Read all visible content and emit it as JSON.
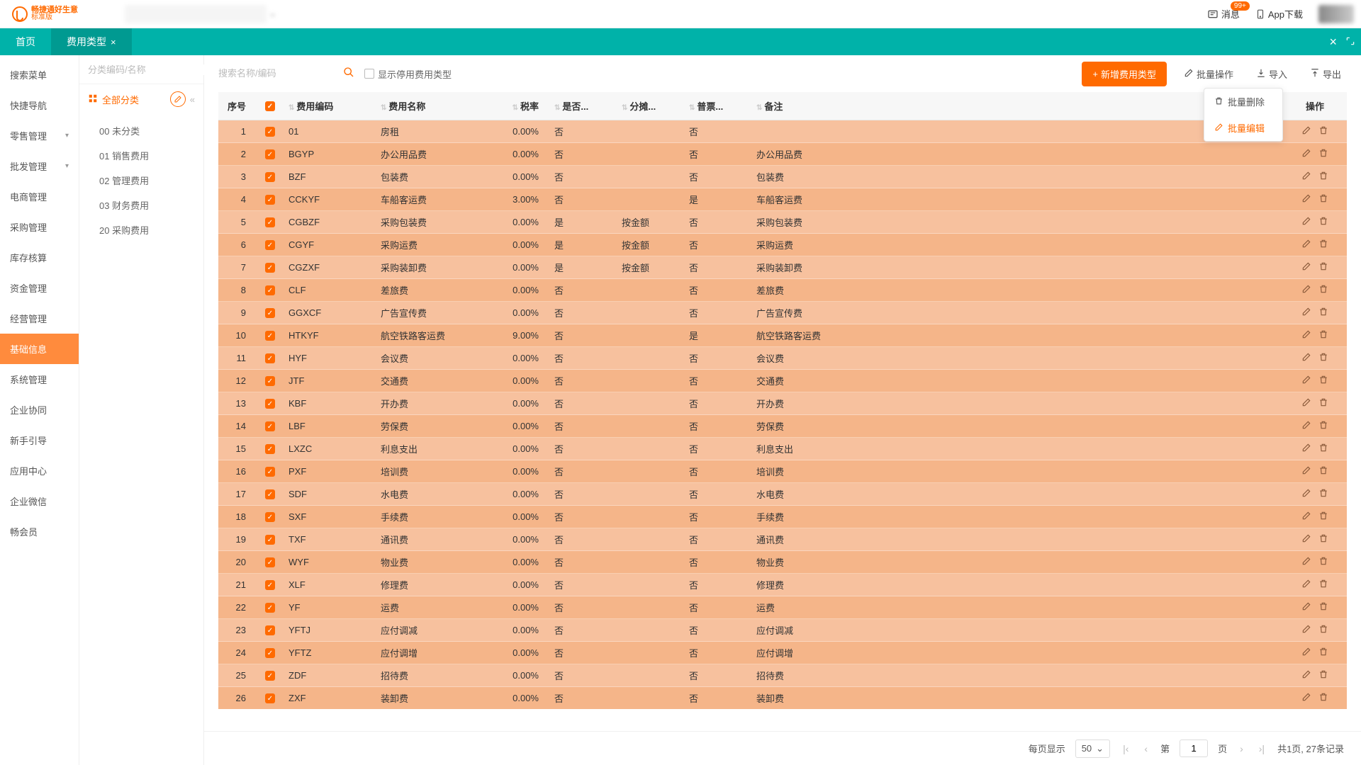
{
  "logo": {
    "brand_top": "畅捷通好生意",
    "brand_bot": "标准版"
  },
  "top": {
    "message_label": "消息",
    "notif_count": "99+",
    "download_label": "App下载"
  },
  "tabs": {
    "home": "首页",
    "active": "费用类型"
  },
  "sidebar": {
    "items": [
      {
        "label": "搜索菜单",
        "expandable": false
      },
      {
        "label": "快捷导航",
        "expandable": false
      },
      {
        "label": "零售管理",
        "expandable": true
      },
      {
        "label": "批发管理",
        "expandable": true
      },
      {
        "label": "电商管理",
        "expandable": false
      },
      {
        "label": "采购管理",
        "expandable": false
      },
      {
        "label": "库存核算",
        "expandable": false
      },
      {
        "label": "资金管理",
        "expandable": false
      },
      {
        "label": "经营管理",
        "expandable": false
      },
      {
        "label": "基础信息",
        "expandable": false,
        "active": true
      },
      {
        "label": "系统管理",
        "expandable": false
      },
      {
        "label": "企业协同",
        "expandable": false
      },
      {
        "label": "新手引导",
        "expandable": false
      },
      {
        "label": "应用中心",
        "expandable": false
      },
      {
        "label": "企业微信",
        "expandable": false
      },
      {
        "label": "畅会员",
        "expandable": false
      }
    ]
  },
  "categories": {
    "search_placeholder": "分类编码/名称",
    "all_label": "全部分类",
    "items": [
      {
        "label": "00 未分类"
      },
      {
        "label": "01 销售费用"
      },
      {
        "label": "02 管理费用"
      },
      {
        "label": "03 财务费用"
      },
      {
        "label": "20 采购费用"
      }
    ]
  },
  "toolbar": {
    "search_placeholder": "搜索名称/编码",
    "show_disabled_label": "显示停用费用类型",
    "add_label": "新增费用类型",
    "batch_label": "批量操作",
    "import_label": "导入",
    "export_label": "导出",
    "dropdown": {
      "delete_label": "批量删除",
      "edit_label": "批量编辑"
    }
  },
  "table": {
    "columns": {
      "seq": "序号",
      "code": "费用编码",
      "name": "费用名称",
      "rate": "税率",
      "bool1": "是否...",
      "split": "分摊...",
      "bool2": "普票...",
      "remark": "备注",
      "ops": "操作"
    },
    "rows": [
      {
        "seq": 1,
        "code": "01",
        "name": "房租",
        "rate": "0.00%",
        "b1": "否",
        "split": "",
        "b2": "否",
        "remark": ""
      },
      {
        "seq": 2,
        "code": "BGYP",
        "name": "办公用品费",
        "rate": "0.00%",
        "b1": "否",
        "split": "",
        "b2": "否",
        "remark": "办公用品费"
      },
      {
        "seq": 3,
        "code": "BZF",
        "name": "包装费",
        "rate": "0.00%",
        "b1": "否",
        "split": "",
        "b2": "否",
        "remark": "包装费"
      },
      {
        "seq": 4,
        "code": "CCKYF",
        "name": "车船客运费",
        "rate": "3.00%",
        "b1": "否",
        "split": "",
        "b2": "是",
        "remark": "车船客运费"
      },
      {
        "seq": 5,
        "code": "CGBZF",
        "name": "采购包装费",
        "rate": "0.00%",
        "b1": "是",
        "split": "按金额",
        "b2": "否",
        "remark": "采购包装费"
      },
      {
        "seq": 6,
        "code": "CGYF",
        "name": "采购运费",
        "rate": "0.00%",
        "b1": "是",
        "split": "按金额",
        "b2": "否",
        "remark": "采购运费"
      },
      {
        "seq": 7,
        "code": "CGZXF",
        "name": "采购装卸费",
        "rate": "0.00%",
        "b1": "是",
        "split": "按金额",
        "b2": "否",
        "remark": "采购装卸费"
      },
      {
        "seq": 8,
        "code": "CLF",
        "name": "差旅费",
        "rate": "0.00%",
        "b1": "否",
        "split": "",
        "b2": "否",
        "remark": "差旅费"
      },
      {
        "seq": 9,
        "code": "GGXCF",
        "name": "广告宣传费",
        "rate": "0.00%",
        "b1": "否",
        "split": "",
        "b2": "否",
        "remark": "广告宣传费"
      },
      {
        "seq": 10,
        "code": "HTKYF",
        "name": "航空铁路客运费",
        "rate": "9.00%",
        "b1": "否",
        "split": "",
        "b2": "是",
        "remark": "航空铁路客运费"
      },
      {
        "seq": 11,
        "code": "HYF",
        "name": "会议费",
        "rate": "0.00%",
        "b1": "否",
        "split": "",
        "b2": "否",
        "remark": "会议费"
      },
      {
        "seq": 12,
        "code": "JTF",
        "name": "交通费",
        "rate": "0.00%",
        "b1": "否",
        "split": "",
        "b2": "否",
        "remark": "交通费"
      },
      {
        "seq": 13,
        "code": "KBF",
        "name": "开办费",
        "rate": "0.00%",
        "b1": "否",
        "split": "",
        "b2": "否",
        "remark": "开办费"
      },
      {
        "seq": 14,
        "code": "LBF",
        "name": "劳保费",
        "rate": "0.00%",
        "b1": "否",
        "split": "",
        "b2": "否",
        "remark": "劳保费"
      },
      {
        "seq": 15,
        "code": "LXZC",
        "name": "利息支出",
        "rate": "0.00%",
        "b1": "否",
        "split": "",
        "b2": "否",
        "remark": "利息支出"
      },
      {
        "seq": 16,
        "code": "PXF",
        "name": "培训费",
        "rate": "0.00%",
        "b1": "否",
        "split": "",
        "b2": "否",
        "remark": "培训费"
      },
      {
        "seq": 17,
        "code": "SDF",
        "name": "水电费",
        "rate": "0.00%",
        "b1": "否",
        "split": "",
        "b2": "否",
        "remark": "水电费"
      },
      {
        "seq": 18,
        "code": "SXF",
        "name": "手续费",
        "rate": "0.00%",
        "b1": "否",
        "split": "",
        "b2": "否",
        "remark": "手续费"
      },
      {
        "seq": 19,
        "code": "TXF",
        "name": "通讯费",
        "rate": "0.00%",
        "b1": "否",
        "split": "",
        "b2": "否",
        "remark": "通讯费"
      },
      {
        "seq": 20,
        "code": "WYF",
        "name": "物业费",
        "rate": "0.00%",
        "b1": "否",
        "split": "",
        "b2": "否",
        "remark": "物业费"
      },
      {
        "seq": 21,
        "code": "XLF",
        "name": "修理费",
        "rate": "0.00%",
        "b1": "否",
        "split": "",
        "b2": "否",
        "remark": "修理费"
      },
      {
        "seq": 22,
        "code": "YF",
        "name": "运费",
        "rate": "0.00%",
        "b1": "否",
        "split": "",
        "b2": "否",
        "remark": "运费"
      },
      {
        "seq": 23,
        "code": "YFTJ",
        "name": "应付调减",
        "rate": "0.00%",
        "b1": "否",
        "split": "",
        "b2": "否",
        "remark": "应付调减"
      },
      {
        "seq": 24,
        "code": "YFTZ",
        "name": "应付调增",
        "rate": "0.00%",
        "b1": "否",
        "split": "",
        "b2": "否",
        "remark": "应付调增"
      },
      {
        "seq": 25,
        "code": "ZDF",
        "name": "招待费",
        "rate": "0.00%",
        "b1": "否",
        "split": "",
        "b2": "否",
        "remark": "招待费"
      },
      {
        "seq": 26,
        "code": "ZXF",
        "name": "装卸费",
        "rate": "0.00%",
        "b1": "否",
        "split": "",
        "b2": "否",
        "remark": "装卸费"
      }
    ]
  },
  "pager": {
    "per_page_label": "每页显示",
    "per_page_value": "50",
    "page_label_prefix": "第",
    "page_value": "1",
    "page_label_suffix": "页",
    "total_label": "共1页, 27条记录"
  },
  "colors": {
    "primary": "#ff6a00",
    "teal": "#00b2a9",
    "row_bg": "#f7c19e"
  }
}
